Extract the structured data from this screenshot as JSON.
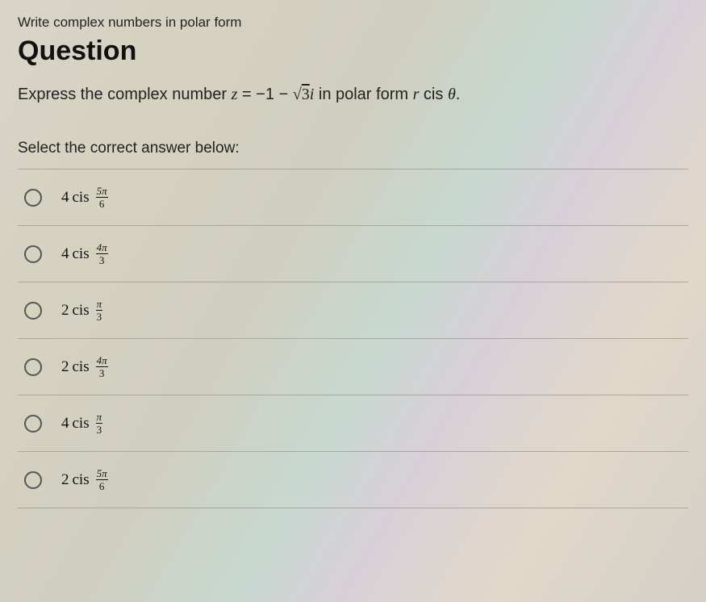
{
  "topic": "Write complex numbers in polar form",
  "heading": "Question",
  "prompt": {
    "pre": "Express the complex number ",
    "expr_lhs": "z",
    "expr_eq": " = ",
    "expr_rhs_a": "−1 − ",
    "expr_sqrt": "3",
    "expr_i": "i",
    "mid": " in polar form ",
    "form_r": "r",
    "form_cis": " cis ",
    "form_theta": "θ",
    "post": "."
  },
  "select_label": "Select the correct answer below:",
  "options": [
    {
      "coeff": "4",
      "cis": "cis",
      "num": "5π",
      "den": "6"
    },
    {
      "coeff": "4",
      "cis": "cis",
      "num": "4π",
      "den": "3"
    },
    {
      "coeff": "2",
      "cis": "cis",
      "num": "π",
      "den": "3"
    },
    {
      "coeff": "2",
      "cis": "cis",
      "num": "4π",
      "den": "3"
    },
    {
      "coeff": "4",
      "cis": "cis",
      "num": "π",
      "den": "3"
    },
    {
      "coeff": "2",
      "cis": "cis",
      "num": "5π",
      "den": "6"
    }
  ],
  "colors": {
    "text": "#222222",
    "border": "#aaa79c",
    "radio_border": "#555555"
  }
}
